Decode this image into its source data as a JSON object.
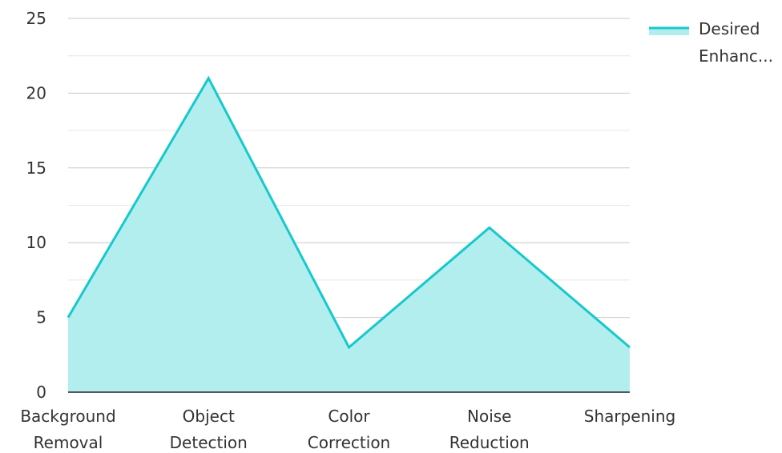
{
  "chart_data": {
    "type": "area",
    "categories": [
      [
        "Background",
        "Removal"
      ],
      [
        "Object",
        "Detection"
      ],
      [
        "Color",
        "Correction"
      ],
      [
        "Noise",
        "Reduction"
      ],
      [
        "Sharpening"
      ]
    ],
    "series": [
      {
        "name": "Desired Enhanc...",
        "values": [
          5,
          21,
          3,
          11,
          3
        ],
        "line_color": "#17c9cc",
        "fill_color": "#b2eeee"
      }
    ],
    "y_ticks": [
      "0",
      "5",
      "10",
      "15",
      "20",
      "25"
    ],
    "ylim": [
      0,
      25
    ],
    "grid": true,
    "legend": {
      "position": "top-right",
      "lines": [
        "Desired",
        "Enhanc..."
      ]
    },
    "colors": {
      "major_grid": "#c8c8c8",
      "minor_grid": "#e6e6e6",
      "axis": "#222222",
      "text": "#333333"
    }
  }
}
